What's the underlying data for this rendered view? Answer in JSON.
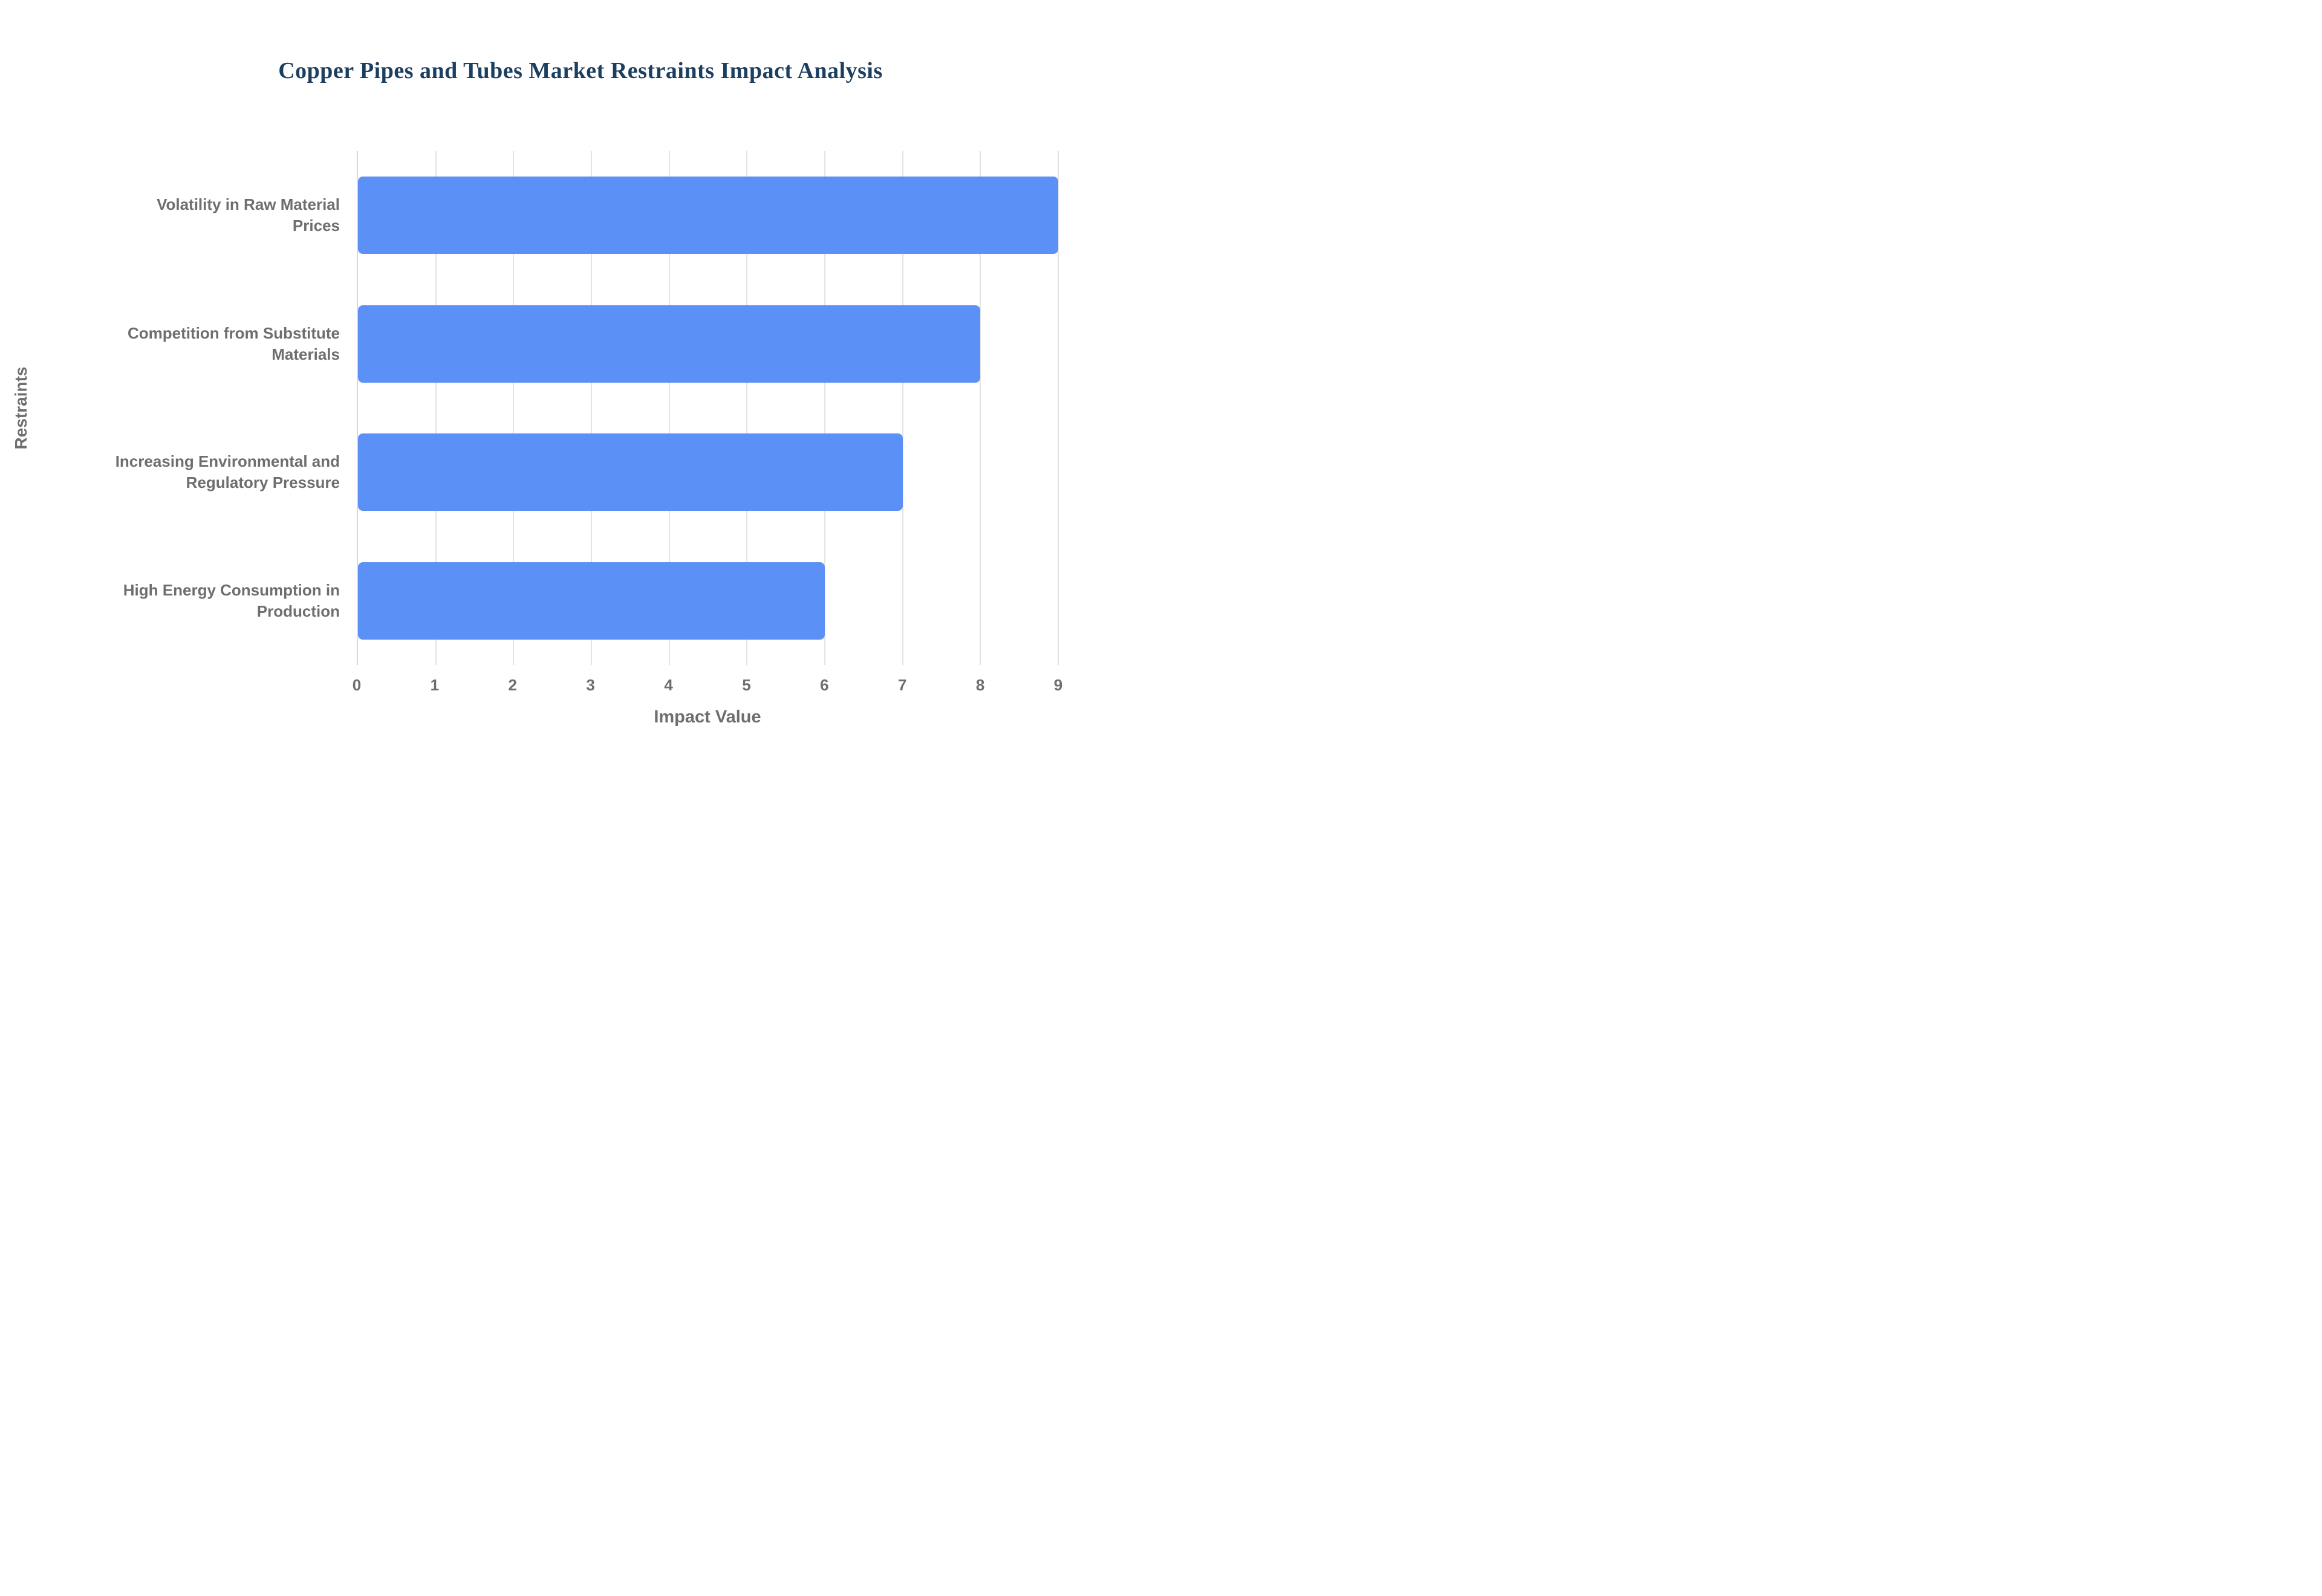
{
  "chart_data": {
    "type": "bar",
    "orientation": "horizontal",
    "title": "Copper Pipes and Tubes Market Restraints Impact Analysis",
    "xlabel": "Impact Value",
    "ylabel": "Restraints",
    "categories": [
      "Volatility in Raw Material Prices",
      "Competition from Substitute Materials",
      "Increasing Environmental and Regulatory Pressure",
      "High Energy Consumption in Production"
    ],
    "values": [
      9,
      8,
      7,
      6
    ],
    "xlim": [
      0,
      9
    ],
    "xticks": [
      0,
      1,
      2,
      3,
      4,
      5,
      6,
      7,
      8,
      9
    ],
    "grid": true,
    "legend": "none",
    "bar_color": "#5b90f7",
    "title_color": "#1c3f60",
    "axis_text_color": "#6e6e6e"
  }
}
